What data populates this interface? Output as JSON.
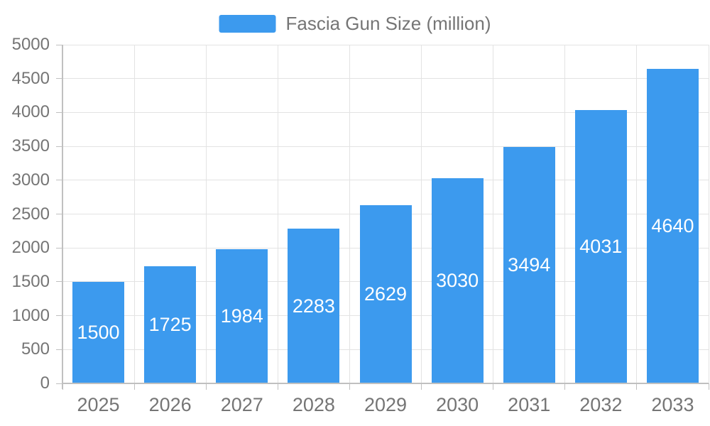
{
  "legend": {
    "label": "Fascia Gun Size (million)"
  },
  "colors": {
    "bar": "#3c9aee",
    "bar_label": "#ffffff",
    "axis_label": "#757575",
    "grid_line": "#e3e3e3",
    "axis_line": "#c0c0c0",
    "background": "#ffffff"
  },
  "chart_data": {
    "type": "bar",
    "title": "Fascia Gun Size (million)",
    "categories": [
      "2025",
      "2026",
      "2027",
      "2028",
      "2029",
      "2030",
      "2031",
      "2032",
      "2033"
    ],
    "values": [
      1500,
      1725,
      1984,
      2283,
      2629,
      3030,
      3494,
      4031,
      4640
    ],
    "series": [
      {
        "name": "Fascia Gun Size (million)",
        "values": [
          1500,
          1725,
          1984,
          2283,
          2629,
          3030,
          3494,
          4031,
          4640
        ]
      }
    ],
    "xlabel": "",
    "ylabel": "",
    "ylim": [
      0,
      5000
    ],
    "ytick_step": 500,
    "ytick_labels": [
      "0",
      "500",
      "1000",
      "1500",
      "2000",
      "2500",
      "3000",
      "3500",
      "4000",
      "4500",
      "5000"
    ],
    "grid": true,
    "legend_position": "top-center",
    "bar_value_labels_visible": true,
    "bar_value_label_position": "inside-center"
  }
}
